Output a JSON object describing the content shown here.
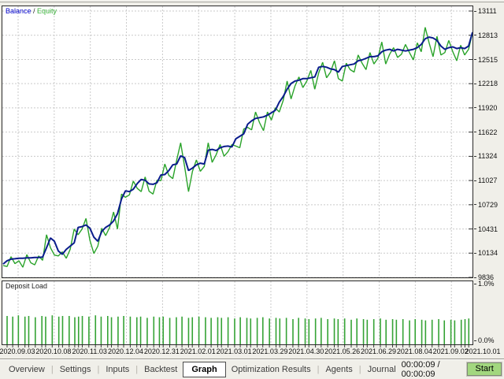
{
  "legend": {
    "balance_label": "Balance",
    "separator": " / ",
    "equity_label": "Equity"
  },
  "deposit_panel": {
    "title": "Deposit Load",
    "max_label": "1.0%",
    "min_label": "0.0%"
  },
  "tabs": {
    "items": [
      "Overview",
      "Settings",
      "Inputs",
      "Backtest",
      "Graph",
      "Optimization Results",
      "Agents",
      "Journal"
    ],
    "active_index": 4
  },
  "status": {
    "elapsed": "00:00:09 / 00:00:09",
    "start_label": "Start"
  },
  "colors": {
    "page_bg": "#f0efe9",
    "balance_line": "#0a1c8c",
    "equity_line": "#2aa32a",
    "balance_label": "#0000cc",
    "equity_label": "#3db43d",
    "deposit_bar": "#35a335",
    "grid": "#c9c9c9",
    "axis_tick": "#333333",
    "start_button_bg": "#a2d77f"
  },
  "chart_data": [
    {
      "type": "line",
      "title": "Balance / Equity backtest curve",
      "x_labels": [
        "2020.09.03",
        "2020.10.08",
        "2020.11.03",
        "2020.12.04",
        "2020.12.31",
        "2021.02.01",
        "2021.03.01",
        "2021.03.29",
        "2021.04.30",
        "2021.05.26",
        "2021.06.29",
        "2021.08.04",
        "2021.09.02",
        "2021.10.01"
      ],
      "y_ticks": [
        13111,
        12813,
        12515,
        12218,
        11920,
        11622,
        11324,
        11027,
        10729,
        10431,
        10134,
        9836
      ],
      "ylim": [
        9836,
        13111
      ],
      "grid": true,
      "legend_position": "top-left",
      "x_spacing": "even",
      "series": [
        {
          "name": "Equity",
          "color": "#2aa32a",
          "values": [
            9980,
            9970,
            10090,
            10005,
            10040,
            9960,
            10115,
            10015,
            9990,
            10100,
            10045,
            10360,
            10200,
            10110,
            10100,
            10150,
            10070,
            10180,
            10430,
            10360,
            10430,
            10560,
            10290,
            10130,
            10220,
            10440,
            10350,
            10450,
            10640,
            10430,
            10860,
            10820,
            10850,
            11020,
            10930,
            10890,
            11070,
            10895,
            10860,
            11030,
            11025,
            11230,
            11090,
            11050,
            11280,
            11490,
            11200,
            10890,
            11140,
            11280,
            11140,
            11200,
            11490,
            11250,
            11345,
            11470,
            11325,
            11380,
            11470,
            11450,
            11430,
            11660,
            11680,
            11650,
            11870,
            11740,
            11640,
            11870,
            11770,
            11920,
            11870,
            12010,
            12250,
            12030,
            12190,
            12300,
            12170,
            12250,
            12380,
            12150,
            12350,
            12480,
            12290,
            12360,
            12500,
            12280,
            12250,
            12470,
            12390,
            12360,
            12570,
            12470,
            12390,
            12600,
            12460,
            12530,
            12730,
            12460,
            12580,
            12660,
            12540,
            12580,
            12700,
            12600,
            12510,
            12720,
            12610,
            12910,
            12720,
            12550,
            12800,
            12570,
            12600,
            12750,
            12610,
            12500,
            12690,
            12570,
            12640,
            12840
          ]
        },
        {
          "name": "Balance",
          "color": "#0a1c8c",
          "values": [
            10000,
            10040,
            10060,
            10065,
            10070,
            10070,
            10075,
            10075,
            10080,
            10080,
            10085,
            10200,
            10320,
            10280,
            10160,
            10120,
            10180,
            10220,
            10260,
            10450,
            10460,
            10480,
            10440,
            10330,
            10280,
            10400,
            10450,
            10480,
            10530,
            10620,
            10800,
            10900,
            10890,
            10920,
            10990,
            11040,
            11030,
            10985,
            10980,
            11000,
            11095,
            11100,
            11150,
            11220,
            11230,
            11330,
            11310,
            11150,
            11180,
            11220,
            11240,
            11230,
            11400,
            11410,
            11395,
            11430,
            11445,
            11450,
            11440,
            11540,
            11570,
            11600,
            11720,
            11760,
            11790,
            11800,
            11810,
            11830,
            11860,
            11890,
            11990,
            12060,
            12150,
            12220,
            12250,
            12260,
            12280,
            12280,
            12290,
            12300,
            12420,
            12430,
            12420,
            12400,
            12390,
            12360,
            12430,
            12440,
            12450,
            12460,
            12500,
            12510,
            12530,
            12550,
            12550,
            12560,
            12610,
            12630,
            12640,
            12620,
            12640,
            12630,
            12620,
            12630,
            12640,
            12660,
            12700,
            12770,
            12790,
            12780,
            12750,
            12680,
            12640,
            12660,
            12670,
            12650,
            12660,
            12650,
            12680,
            12850
          ]
        }
      ]
    },
    {
      "type": "bar",
      "title": "Deposit Load",
      "ylabel_max": "1.0%",
      "ylabel_min": "0.0%",
      "ylim": [
        0.0,
        1.0
      ],
      "bars_x_pct": [
        1.0,
        2.2,
        3.4,
        4.8,
        5.6,
        7.0,
        8.4,
        9.2,
        10.6,
        12.0,
        12.8,
        14.2,
        15.4,
        16.2,
        17.0,
        18.4,
        19.8,
        21.0,
        22.4,
        23.2,
        24.6,
        25.8,
        27.2,
        28.6,
        29.4,
        30.8,
        32.2,
        33.4,
        34.2,
        35.6,
        37.0,
        38.2,
        39.6,
        40.4,
        41.8,
        43.2,
        44.4,
        45.8,
        46.6,
        48.0,
        49.4,
        50.6,
        52.0,
        52.8,
        54.2,
        55.4,
        56.8,
        58.2,
        59.0,
        60.4,
        61.8,
        63.0,
        64.4,
        65.2,
        66.6,
        67.8,
        69.2,
        70.6,
        71.4,
        72.8,
        74.2,
        75.4,
        76.8,
        77.6,
        79.0,
        80.4,
        81.6,
        83.0,
        83.8,
        85.2,
        86.6,
        87.8,
        89.2,
        90.0,
        91.4,
        92.8,
        94.0,
        95.4,
        96.2,
        97.6,
        98.4,
        99.2
      ],
      "bars_h_pct": [
        0.45,
        0.44,
        0.46,
        0.44,
        0.45,
        0.43,
        0.45,
        0.44,
        0.46,
        0.44,
        0.45,
        0.45,
        0.43,
        0.44,
        0.45,
        0.44,
        0.46,
        0.44,
        0.45,
        0.43,
        0.44,
        0.45,
        0.44,
        0.43,
        0.44,
        0.42,
        0.44,
        0.43,
        0.44,
        0.42,
        0.43,
        0.44,
        0.42,
        0.43,
        0.44,
        0.43,
        0.42,
        0.43,
        0.42,
        0.43,
        0.41,
        0.43,
        0.42,
        0.41,
        0.42,
        0.43,
        0.41,
        0.42,
        0.41,
        0.42,
        0.4,
        0.42,
        0.41,
        0.4,
        0.41,
        0.42,
        0.4,
        0.41,
        0.4,
        0.41,
        0.39,
        0.41,
        0.4,
        0.39,
        0.4,
        0.41,
        0.39,
        0.4,
        0.39,
        0.4,
        0.38,
        0.4,
        0.39,
        0.38,
        0.39,
        0.4,
        0.38,
        0.39,
        0.38,
        0.39,
        0.4,
        0.41
      ]
    }
  ]
}
